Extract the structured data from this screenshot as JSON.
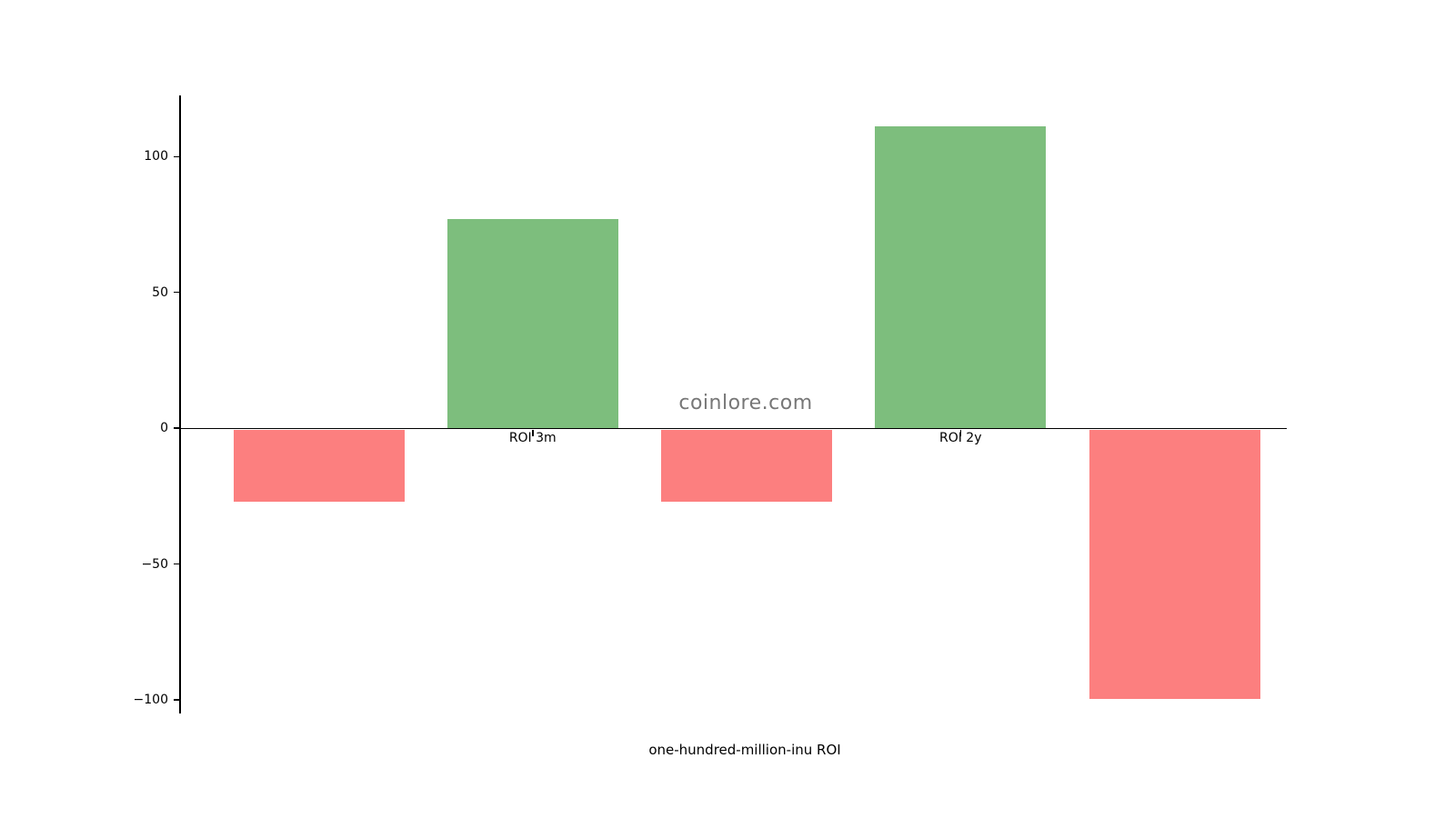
{
  "chart_data": {
    "type": "bar",
    "categories": [
      "",
      "ROI 3m",
      "",
      "ROI 2y",
      ""
    ],
    "values": [
      -27,
      77,
      -27,
      111,
      -99.5
    ],
    "title": "one-hundred-million-inu ROI",
    "xlabel": "",
    "ylabel": "",
    "ylim": [
      -105,
      122.5
    ],
    "yticks": [
      100,
      50,
      0,
      -50,
      -100
    ],
    "ytick_labels": [
      "100",
      "50",
      "0",
      "−50",
      "−100"
    ],
    "grid": false,
    "legend_position": "none",
    "positive_color": "#7dbe7d",
    "negative_color": "#fc7f7f",
    "axis_color": "#000000"
  },
  "watermark": {
    "text": "coinlore.com",
    "color": "#777777"
  }
}
